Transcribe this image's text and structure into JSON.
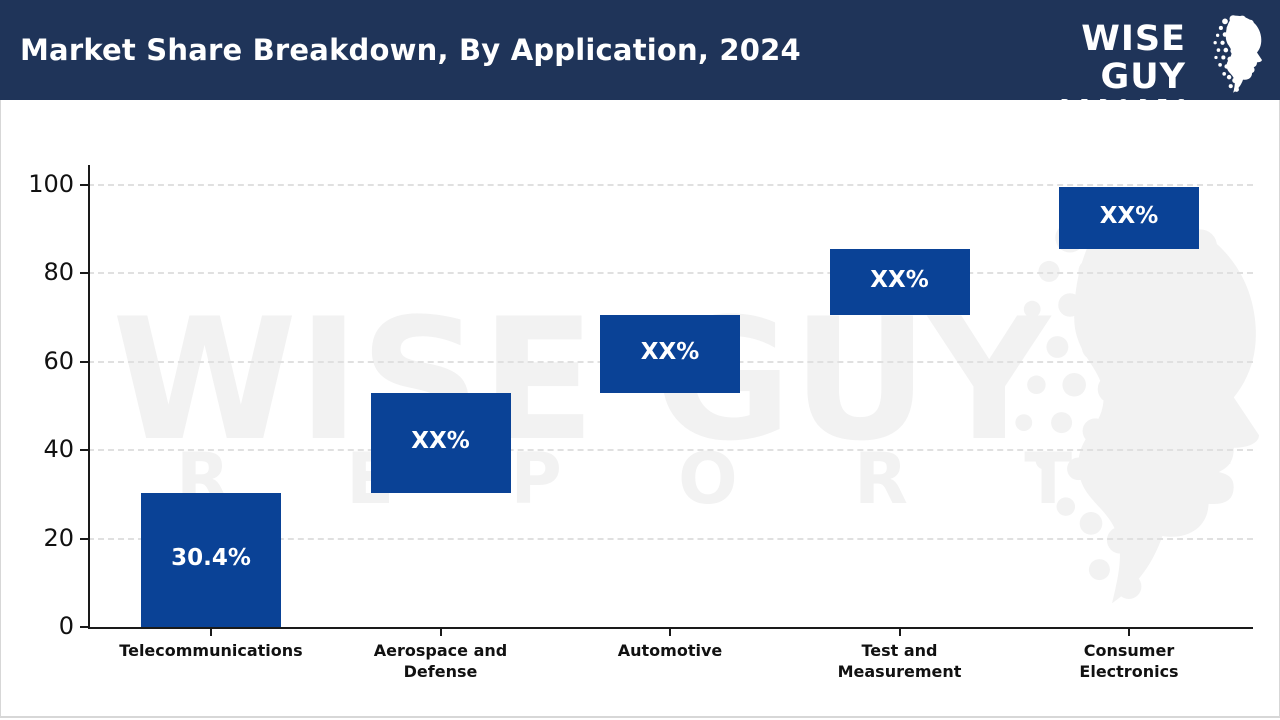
{
  "header": {
    "title": "Market Share Breakdown, By Application, 2024",
    "logo": {
      "line1": "WISE GUY",
      "line2": "REPORTS"
    }
  },
  "watermark": {
    "line1": "WISE GUY",
    "line2": "R E P O R T S"
  },
  "colors": {
    "header_bg": "#1f3459",
    "bar": "#0a4296",
    "bar_label": "#ffffff",
    "axis": "#1a1a1a",
    "grid": "#e0e0e0",
    "watermark": "#f2f2f2",
    "border": "#d7d7d7"
  },
  "chart_data": {
    "type": "bar",
    "subtype": "waterfall",
    "title": "Market Share Breakdown, By Application, 2024",
    "xlabel": "",
    "ylabel": "",
    "ylim": [
      0,
      105
    ],
    "yticks": [
      0,
      20,
      40,
      60,
      80,
      100
    ],
    "grid": "horizontal-dashed",
    "legend": "none",
    "categories": [
      "Telecommunications",
      "Aerospace and\nDefense",
      "Automotive",
      "Test and\nMeasurement",
      "Consumer\nElectronics"
    ],
    "series": [
      {
        "name": "Market Share (%)",
        "starts": [
          0,
          30.4,
          53,
          70.5,
          85.5
        ],
        "ends": [
          30.4,
          53,
          70.5,
          85.5,
          99.5
        ],
        "labels": [
          "30.4%",
          "XX%",
          "XX%",
          "XX%",
          "XX%"
        ]
      }
    ]
  }
}
